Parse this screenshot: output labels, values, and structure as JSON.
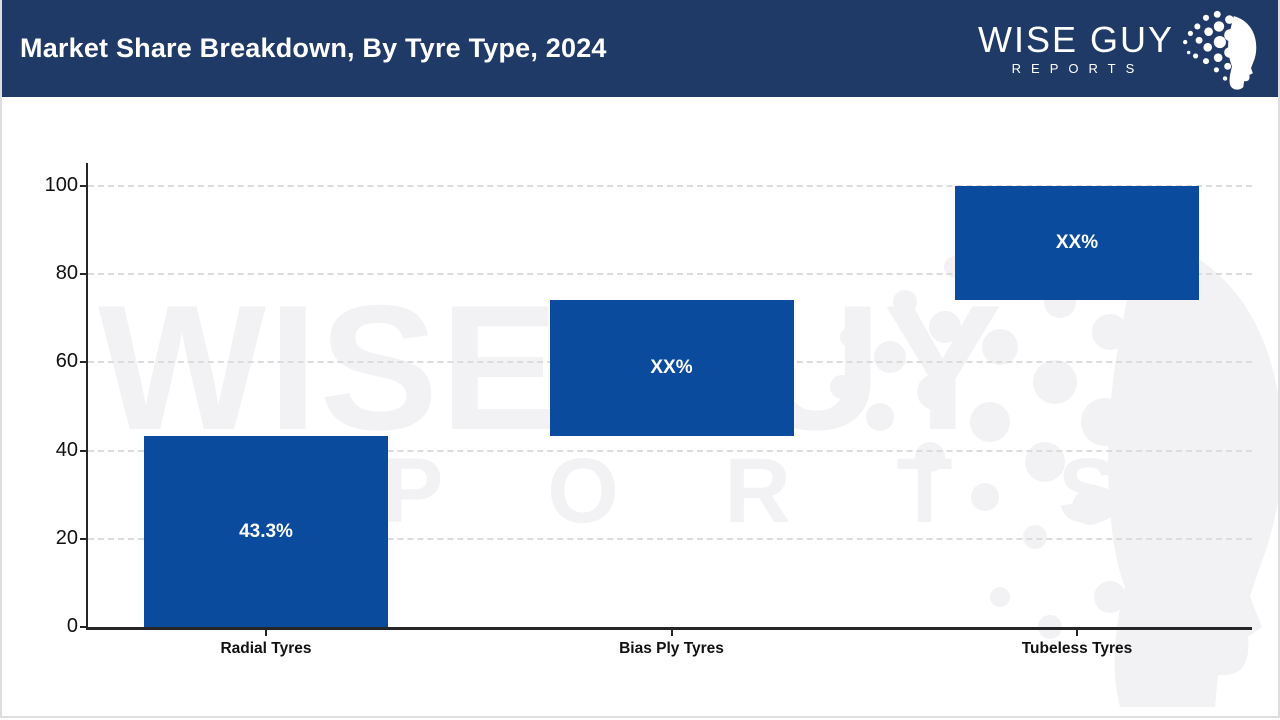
{
  "header": {
    "title": "Market Share Breakdown, By Tyre Type, 2024",
    "logo": {
      "line1": "WISE GUY",
      "line2": "REPORTS"
    }
  },
  "watermark": {
    "line1": "WISE GUY",
    "line2": "P O R T S"
  },
  "chart_data": {
    "type": "bar",
    "subtype": "floating-segment-waterfall",
    "title": "Market Share Breakdown, By Tyre Type, 2024",
    "categories": [
      "Radial Tyres",
      "Bias Ply Tyres",
      "Tubeless Tyres"
    ],
    "segments": [
      {
        "category": "Radial Tyres",
        "start": 0,
        "end": 43.3,
        "label": "43.3%"
      },
      {
        "category": "Bias Ply Tyres",
        "start": 43.3,
        "end": 74.2,
        "label": "XX%"
      },
      {
        "category": "Tubeless Tyres",
        "start": 74.2,
        "end": 100,
        "label": "XX%"
      }
    ],
    "xlabel": "",
    "ylabel": "",
    "ylim": [
      0,
      100
    ],
    "yticks": [
      0,
      20,
      40,
      60,
      80,
      100
    ],
    "grid": "horizontal-dashed",
    "legend": false,
    "bar_color": "#0a4b9e",
    "bar_label_color": "#ffffff",
    "axis_color": "#262626",
    "gridline_color": "#dcdcdc",
    "header_bg_color": "#203a68",
    "watermark_color": "#f2f2f4"
  }
}
